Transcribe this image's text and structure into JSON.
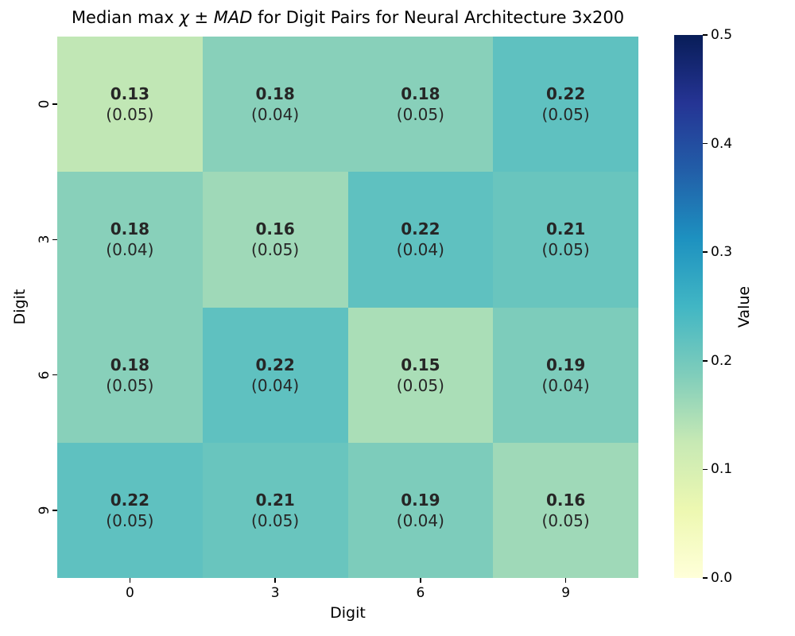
{
  "title": {
    "part1": "Median max ",
    "math": "χ ± MAD",
    "part2": " for Digit Pairs for Neural Architecture 3x200"
  },
  "chart_data": {
    "type": "heatmap",
    "title": "Median max χ ± MAD for Digit Pairs for Neural Architecture 3x200",
    "xlabel": "Digit",
    "ylabel": "Digit",
    "x_ticks": [
      "0",
      "3",
      "6",
      "9"
    ],
    "y_ticks": [
      "0",
      "3",
      "6",
      "9"
    ],
    "values": [
      [
        0.13,
        0.18,
        0.18,
        0.22
      ],
      [
        0.18,
        0.16,
        0.22,
        0.21
      ],
      [
        0.18,
        0.22,
        0.15,
        0.19
      ],
      [
        0.22,
        0.21,
        0.19,
        0.16
      ]
    ],
    "mads": [
      [
        0.05,
        0.04,
        0.05,
        0.05
      ],
      [
        0.04,
        0.05,
        0.04,
        0.05
      ],
      [
        0.05,
        0.04,
        0.05,
        0.04
      ],
      [
        0.05,
        0.05,
        0.04,
        0.05
      ]
    ],
    "vmin": 0.0,
    "vmax": 0.5,
    "annotation_text_color": "#262626",
    "colorbar": {
      "label": "Value",
      "tick_values": [
        0.0,
        0.1,
        0.2,
        0.3,
        0.4,
        0.5
      ]
    },
    "colormap": {
      "name": "YlGnBu",
      "stops": [
        "#ffffd9",
        "#edf8b1",
        "#c7e9b4",
        "#7fcdbb",
        "#41b6c4",
        "#1d91c0",
        "#225ea8",
        "#253494",
        "#081d58"
      ]
    }
  }
}
